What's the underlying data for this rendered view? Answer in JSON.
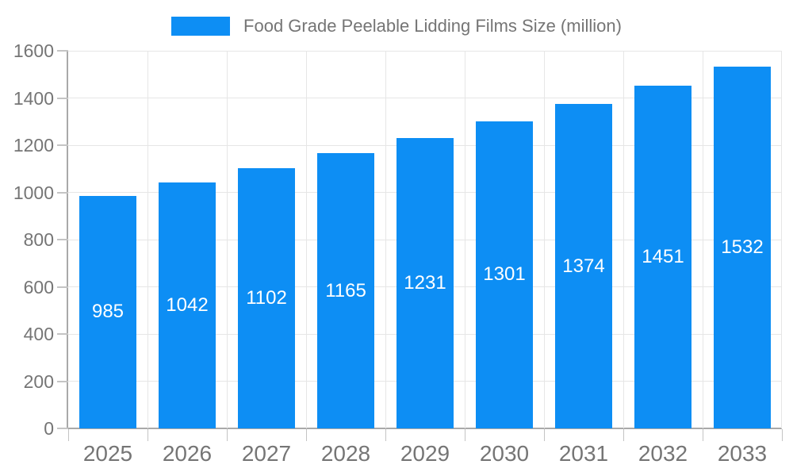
{
  "chart_data": {
    "type": "bar",
    "title": "Food Grade Peelable Lidding Films Size (million)",
    "categories": [
      "2025",
      "2026",
      "2027",
      "2028",
      "2029",
      "2030",
      "2031",
      "2032",
      "2033"
    ],
    "values": [
      985,
      1042,
      1102,
      1165,
      1231,
      1301,
      1374,
      1451,
      1532
    ],
    "series": [
      {
        "name": "Food Grade Peelable Lidding Films Size (million)",
        "values": [
          985,
          1042,
          1102,
          1165,
          1231,
          1301,
          1374,
          1451,
          1532
        ]
      }
    ],
    "xlabel": "",
    "ylabel": "",
    "ylim": [
      0,
      1600
    ],
    "yticks": [
      0,
      200,
      400,
      600,
      800,
      1000,
      1200,
      1400,
      1600
    ],
    "grid": true,
    "legend_position": "top",
    "value_label_position": "inside-center"
  },
  "colors": {
    "bar": "#0d8ef4",
    "grid": "#e6e6e6",
    "axis": "#a9a9a9",
    "tick": "#c4c4c4",
    "text": "#757575",
    "value_label": "#ffffff",
    "background": "#ffffff"
  }
}
